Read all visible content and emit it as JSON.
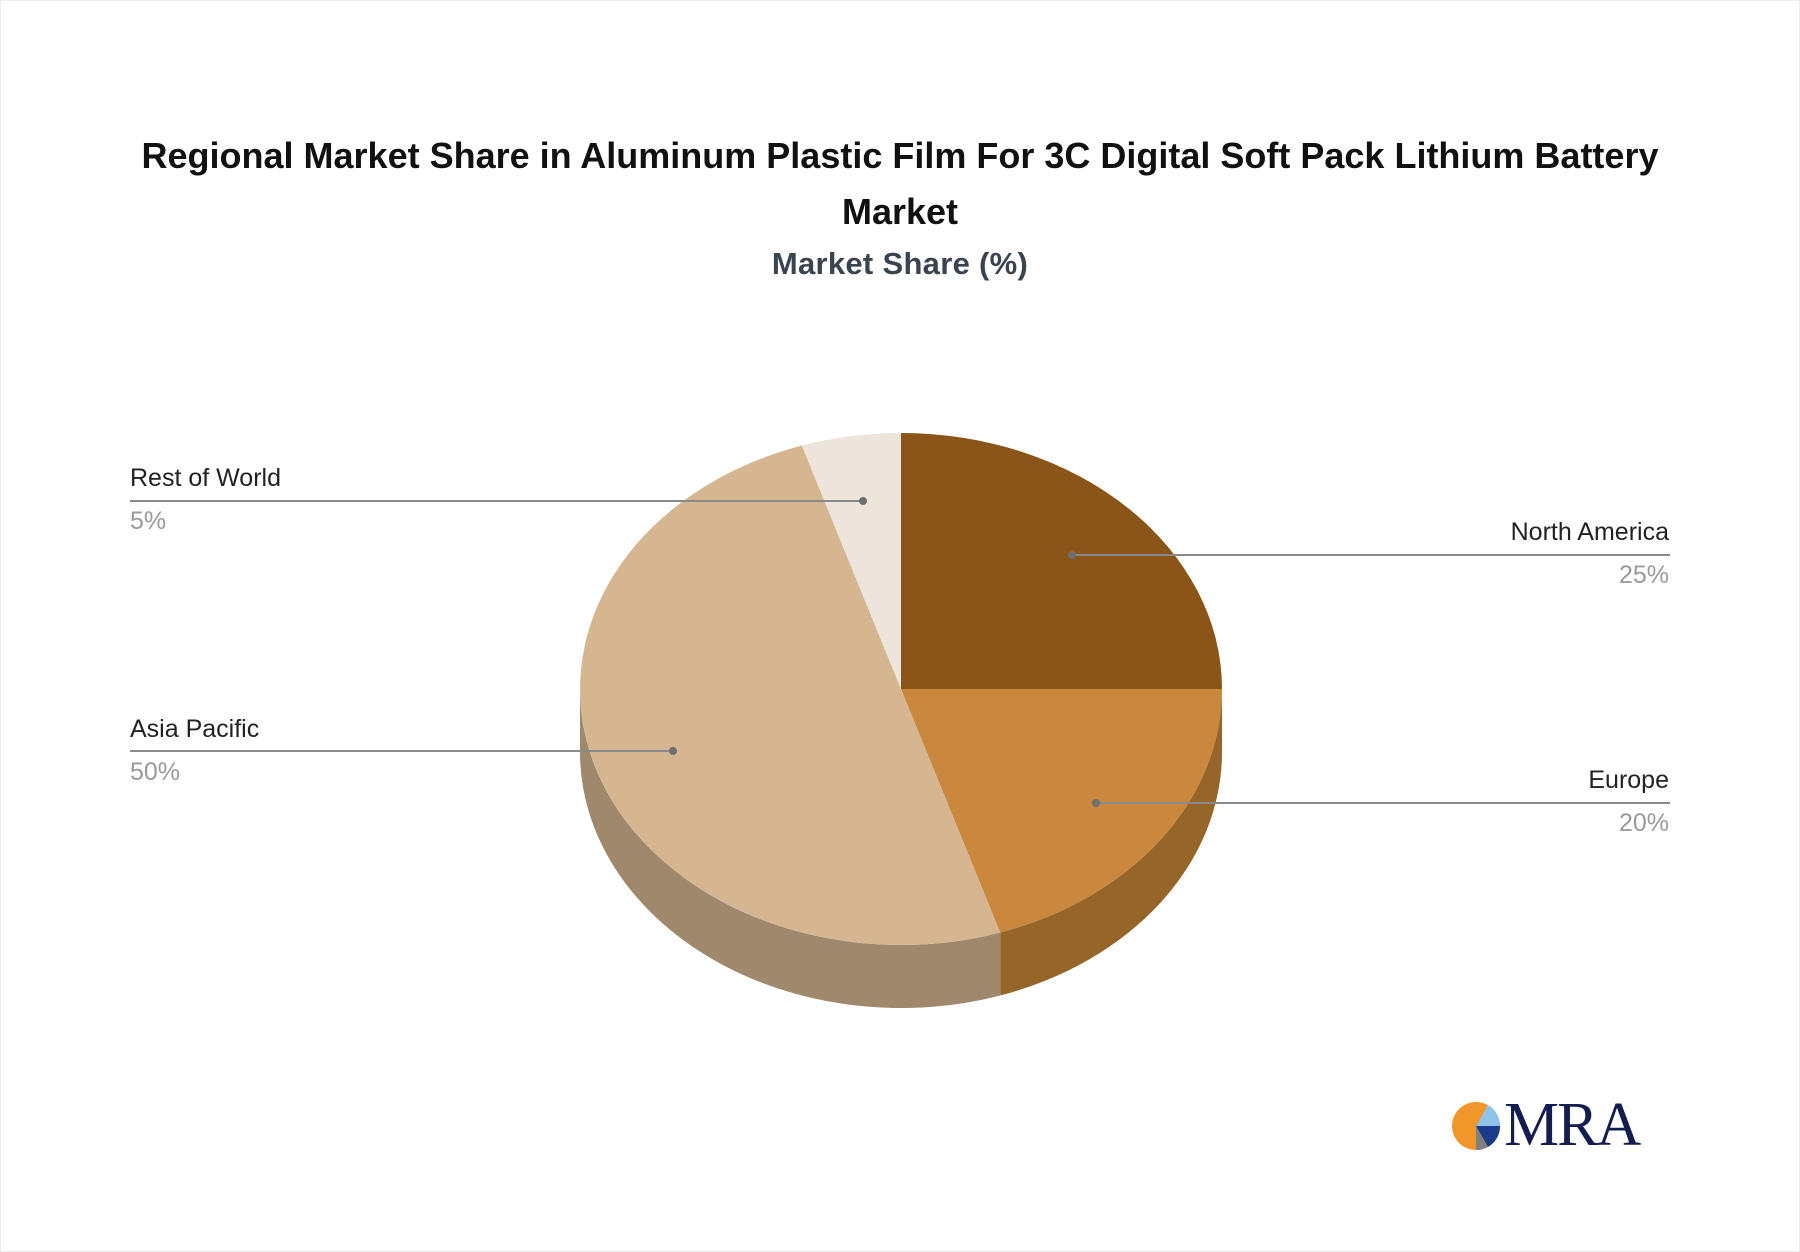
{
  "chart_data": {
    "type": "pie",
    "style": "3d",
    "title": "Regional Market Share in Aluminum Plastic Film For 3C Digital Soft Pack Lithium Battery Market",
    "subtitle": "Market Share (%)",
    "categories": [
      "North America",
      "Europe",
      "Asia Pacific",
      "Rest of World"
    ],
    "values": [
      25,
      20,
      50,
      5
    ],
    "unit": "%",
    "colors": [
      "#8B5519",
      "#C9883D",
      "#D6B691",
      "#EDE4DC"
    ],
    "side_colors": [
      "#7A4B17",
      "#96652A",
      "#A0886C",
      "#C9BFB5"
    ],
    "legend_position": "callout-labels"
  },
  "header": {
    "title_line1": "Regional Market Share in Aluminum Plastic Film For 3C Digital Soft Pack Lithium Battery",
    "title_line2": "Market",
    "subtitle": "Market Share (%)"
  },
  "labels": {
    "north_america": {
      "name": "North America",
      "pct": "25%"
    },
    "europe": {
      "name": "Europe",
      "pct": "20%"
    },
    "asia_pacific": {
      "name": "Asia Pacific",
      "pct": "50%"
    },
    "rest_of_world": {
      "name": "Rest of World",
      "pct": "5%"
    }
  },
  "logo": {
    "text": "MRA",
    "colors": [
      "#F0962A",
      "#8FC3EA",
      "#1B3A8A",
      "#7F7F7F"
    ]
  }
}
